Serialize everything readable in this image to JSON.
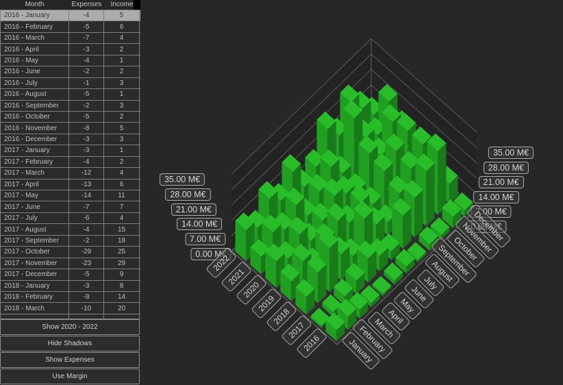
{
  "table": {
    "columns": [
      "Month",
      "Expenses",
      "Income"
    ],
    "selected_row": 0,
    "rows": [
      [
        "2016 - January",
        "-4",
        "5"
      ],
      [
        "2016 - February",
        "-5",
        "6"
      ],
      [
        "2016 - March",
        "-7",
        "4"
      ],
      [
        "2016 - April",
        "-3",
        "2"
      ],
      [
        "2016 - May",
        "-4",
        "1"
      ],
      [
        "2016 - June",
        "-2",
        "2"
      ],
      [
        "2016 - July",
        "-1",
        "3"
      ],
      [
        "2016 - August",
        "-5",
        "1"
      ],
      [
        "2016 - September",
        "-2",
        "3"
      ],
      [
        "2016 - October",
        "-5",
        "2"
      ],
      [
        "2016 - November",
        "-8",
        "5"
      ],
      [
        "2016 - December",
        "-3",
        "3"
      ],
      [
        "2017 - January",
        "-3",
        "1"
      ],
      [
        "2017 - February",
        "-4",
        "2"
      ],
      [
        "2017 - March",
        "-12",
        "4"
      ],
      [
        "2017 - April",
        "-13",
        "6"
      ],
      [
        "2017 - May",
        "-14",
        "11"
      ],
      [
        "2017 - June",
        "-7",
        "7"
      ],
      [
        "2017 - July",
        "-6",
        "4"
      ],
      [
        "2017 - August",
        "-4",
        "15"
      ],
      [
        "2017 - September",
        "-2",
        "18"
      ],
      [
        "2017 - October",
        "-29",
        "25"
      ],
      [
        "2017 - November",
        "-23",
        "29"
      ],
      [
        "2017 - December",
        "-5",
        "9"
      ],
      [
        "2018 - January",
        "-3",
        "8"
      ],
      [
        "2018 - February",
        "-8",
        "14"
      ],
      [
        "2018 - March",
        "-10",
        "20"
      ]
    ]
  },
  "buttons": {
    "labels": [
      "Show 2020 - 2022",
      "Hide Shadows",
      "Show Expenses",
      "Use Margin"
    ]
  },
  "chart_data": {
    "type": "bar",
    "projection": "3d",
    "unit": "M€",
    "ylim": [
      0,
      35
    ],
    "value_axis_labels": [
      "0.00 M€",
      "7.00 M€",
      "14.00 M€",
      "21.00 M€",
      "28.00 M€",
      "35.00 M€"
    ],
    "months": [
      "January",
      "February",
      "March",
      "April",
      "May",
      "June",
      "July",
      "August",
      "September",
      "October",
      "November",
      "December"
    ],
    "years": [
      "2016",
      "2017",
      "2018",
      "2019",
      "2020",
      "2021",
      "2022"
    ],
    "series": [
      {
        "name": "2016",
        "values": [
          5,
          6,
          4,
          2,
          1,
          2,
          3,
          1,
          3,
          2,
          5,
          3
        ]
      },
      {
        "name": "2017",
        "values": [
          1,
          2,
          4,
          6,
          11,
          7,
          4,
          15,
          18,
          25,
          29,
          9
        ]
      },
      {
        "name": "2018",
        "values": [
          8,
          14,
          20,
          12,
          6,
          18,
          10,
          6,
          14,
          20,
          26,
          12
        ]
      },
      {
        "name": "2019",
        "values": [
          9,
          13,
          6,
          12,
          16,
          10,
          14,
          8,
          18,
          22,
          26,
          12
        ]
      },
      {
        "name": "2020",
        "values": [
          12,
          8,
          14,
          6,
          10,
          16,
          12,
          8,
          20,
          14,
          24,
          16
        ]
      },
      {
        "name": "2021",
        "values": [
          8,
          14,
          10,
          16,
          6,
          12,
          18,
          10,
          30,
          16,
          12,
          22
        ]
      },
      {
        "name": "2022",
        "values": [
          14,
          10,
          18,
          12,
          20,
          8,
          12,
          24,
          16,
          26,
          18,
          10
        ]
      }
    ]
  },
  "colors": {
    "bar_top": "#29bd29",
    "bar_left": "#219f21",
    "bar_right": "#187a18",
    "chart_bg": "#272727",
    "wall": "#232323",
    "wall_grid": "#5c5c5c",
    "floor": "#313131",
    "floor_grid": "#272727",
    "floor_edge": "#6f6f6f",
    "selection": "#acacac"
  }
}
